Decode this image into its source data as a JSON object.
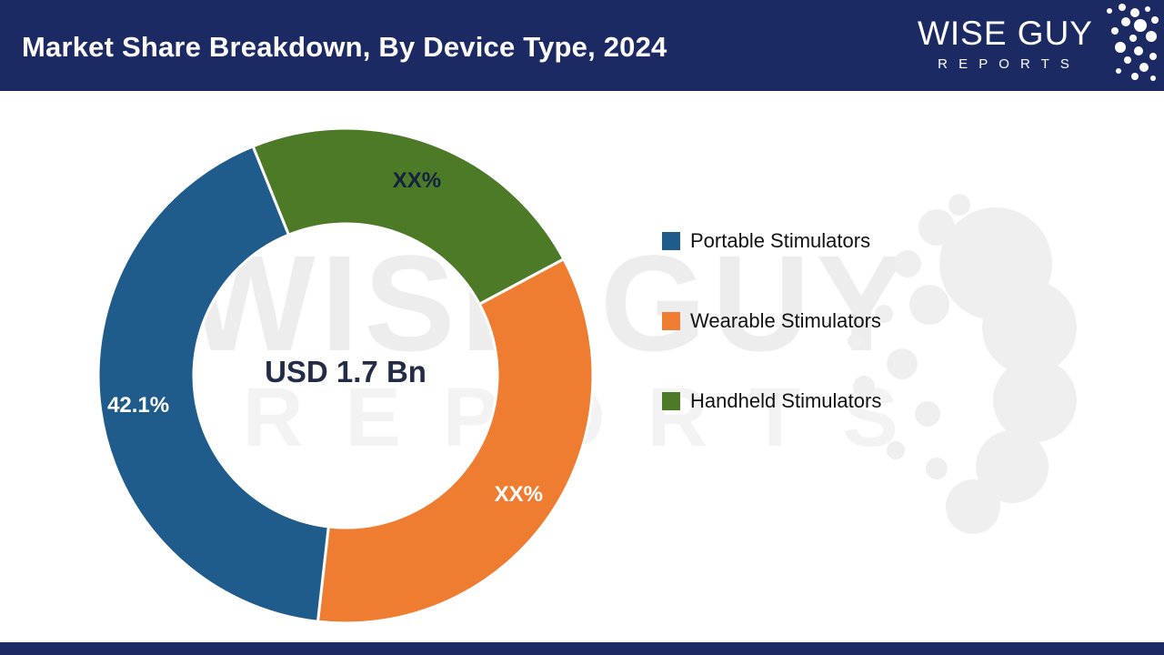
{
  "header": {
    "title": "Market Share Breakdown, By Device Type, 2024",
    "logo": {
      "wordmark": "WISE GUY",
      "subtitle": "R E P O R T S"
    }
  },
  "watermark": {
    "line1": "WISE GUY",
    "line2": "REPORTS"
  },
  "chart_data": {
    "type": "donut",
    "title": "Market Share Breakdown, By Device Type, 2024",
    "center_label": "USD 1.7 Bn",
    "units": "percent market share",
    "start_angle_deg": -22,
    "segments": [
      {
        "name": "Handheld Stimulators",
        "display_label": "XX%",
        "value": 23.3,
        "color": "#4d7a27",
        "label_color": "#132240"
      },
      {
        "name": "Wearable Stimulators",
        "display_label": "XX%",
        "value": 34.6,
        "color": "#ee7c31",
        "label_color": "#ffffff"
      },
      {
        "name": "Portable Stimulators",
        "display_label": "42.1%",
        "value": 42.1,
        "color": "#1f5c8c",
        "label_color": "#ffffff"
      }
    ],
    "legend": {
      "position": "right",
      "items": [
        {
          "label": "Portable Stimulators",
          "color": "#1f5c8c"
        },
        {
          "label": "Wearable Stimulators",
          "color": "#ee7c31"
        },
        {
          "label": "Handheld Stimulators",
          "color": "#4d7a27"
        }
      ]
    }
  },
  "colors": {
    "header_bg": "#1b2a63",
    "portable_blue": "#1f5c8c",
    "wearable_orange": "#ee7c31",
    "handheld_green": "#4d7a27",
    "watermark_gray": "#ededed"
  }
}
